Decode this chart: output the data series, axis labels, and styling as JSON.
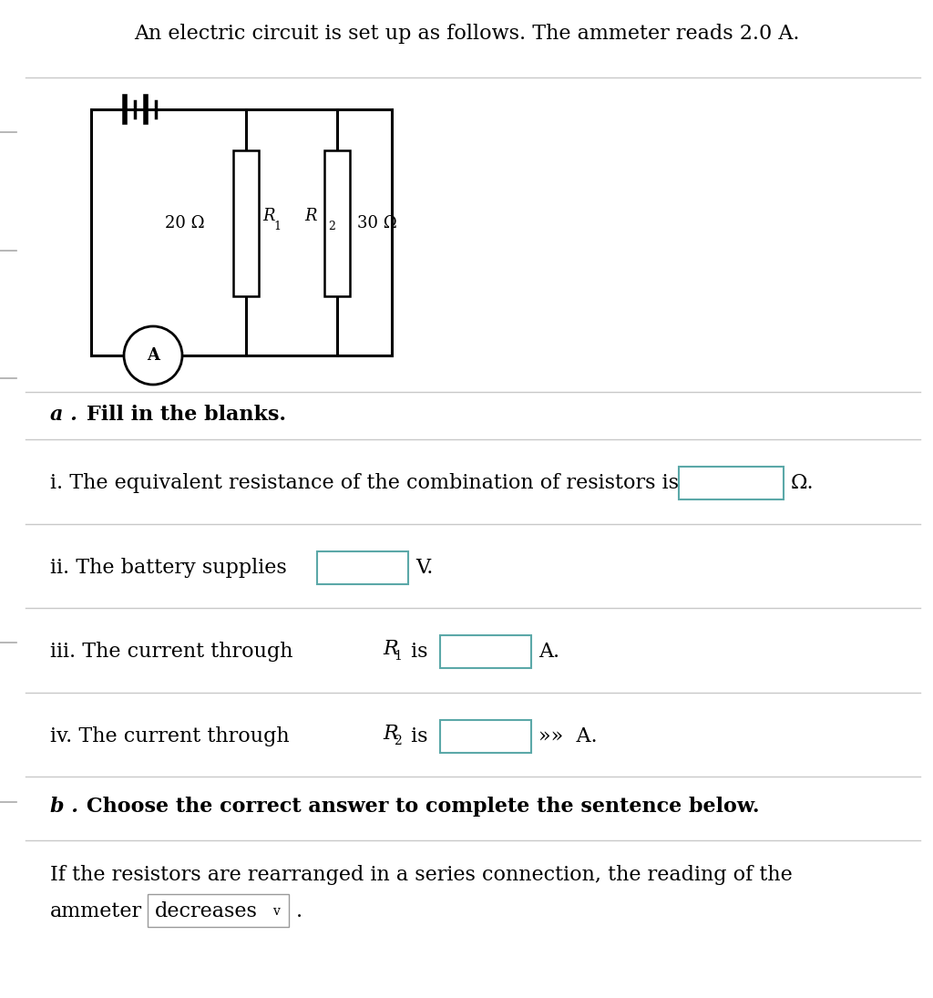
{
  "title": "An electric circuit is set up as follows. The ammeter reads 2.0 A.",
  "title_fontsize": 16,
  "body_fontsize": 16,
  "small_fontsize": 13,
  "background_color": "#ffffff",
  "text_color": "#000000",
  "section_a_label": "a .",
  "section_a_text": "Fill in the blanks.",
  "q_i_text": "i. The equivalent resistance of the combination of resistors is",
  "q_i_suffix": "Ω.",
  "q_ii_text": "ii. The battery supplies",
  "q_ii_suffix": "V.",
  "q_iii_prefix": "iii. The current through ",
  "q_iii_R1": "R",
  "q_iii_R1_sub": "1",
  "q_iii_suffix": " is",
  "q_iii_end": "A.",
  "q_iv_prefix": "iv. The current through ",
  "q_iv_R2": "R",
  "q_iv_R2_sub": "2",
  "q_iv_suffix": " is",
  "q_iv_end": "»»  A.",
  "section_b_label": "b .",
  "section_b_text": "Choose the correct answer to complete the sentence below.",
  "last_line1": "If the resistors are rearranged in a series connection, the reading of the",
  "last_line2": "ammeter",
  "last_answer": "decreases",
  "last_v": "v",
  "last_dot": ".",
  "circuit_20ohm": "20 Ω",
  "circuit_R1": "R",
  "circuit_R1_sub": "1",
  "circuit_R2": "R",
  "circuit_R2_sub": "2",
  "circuit_30ohm": "30 Ω",
  "circuit_A": "A",
  "line_color": "#c8c8c8",
  "box_border_color": "#5ba8a8",
  "drop_border_color": "#999999",
  "circuit_line_color": "#000000",
  "left_edge_color": "#aaaaaa"
}
